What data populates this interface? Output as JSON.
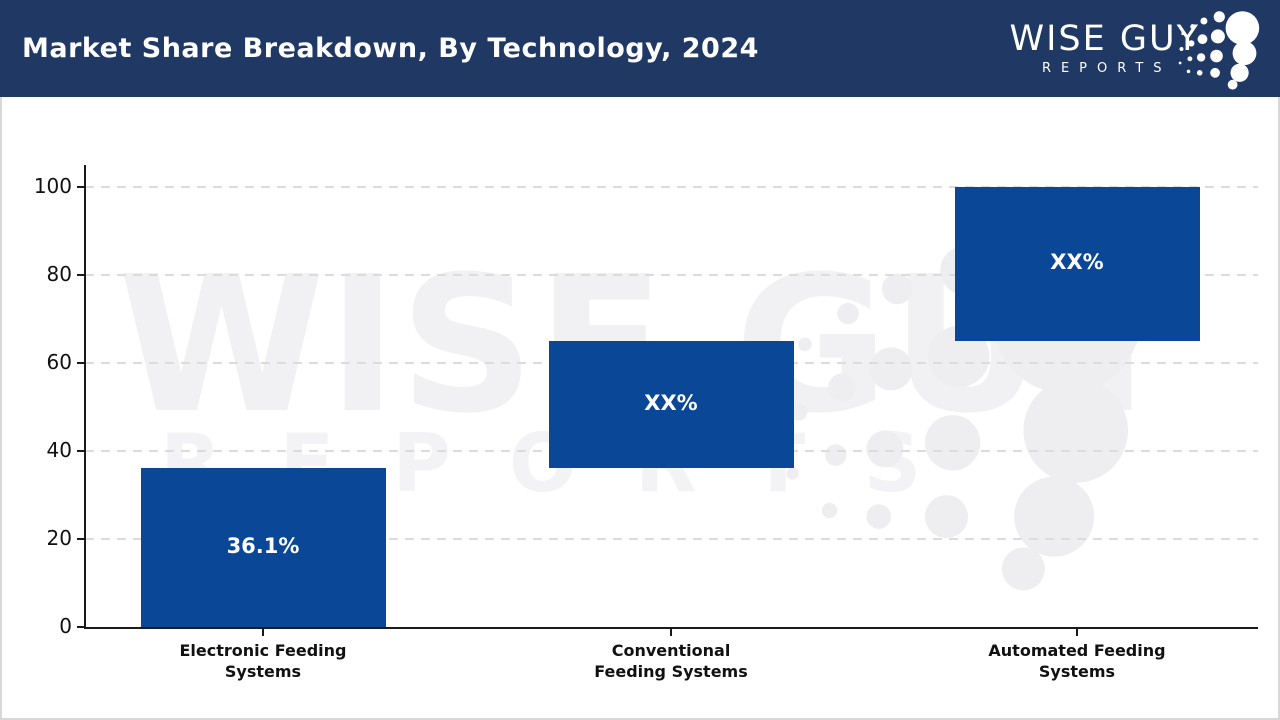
{
  "header": {
    "title": "Market Share Breakdown, By Technology, 2024",
    "logo": {
      "name": "WISE GUY",
      "tagline": "REPORTS"
    }
  },
  "watermark": {
    "line1": "WISE GUY",
    "line2": "REPORTS"
  },
  "colors": {
    "header_bg": "#203864",
    "bar_blue": "#0a4796",
    "bar_label": "#ffffff",
    "watermark_gray": "#f1f1f4",
    "axis_black": "#1a1a1a",
    "grid_gray": "#dcdcdc"
  },
  "chart_data": {
    "type": "bar",
    "subtype": "waterfall-stacked-breakdown",
    "title": "Market Share Breakdown, By Technology, 2024",
    "categories": [
      [
        "Electronic Feeding",
        "Systems"
      ],
      [
        "Conventional",
        "Feeding Systems"
      ],
      [
        "Automated Feeding",
        "Systems"
      ]
    ],
    "segments": [
      {
        "category": "Electronic Feeding Systems",
        "start": 0,
        "end": 36.1,
        "label": "36.1%"
      },
      {
        "category": "Conventional Feeding Systems",
        "start": 36.1,
        "end": 65,
        "label": "XX%"
      },
      {
        "category": "Automated Feeding Systems",
        "start": 65,
        "end": 100,
        "label": "XX%"
      }
    ],
    "yticks": [
      0,
      20,
      40,
      60,
      80,
      100
    ],
    "ylim": [
      0,
      100
    ],
    "xlabel": "",
    "ylabel": "",
    "grid": "horizontal-dashed",
    "legend": "none",
    "bar_color": "#0a4796",
    "label_color": "#ffffff"
  }
}
